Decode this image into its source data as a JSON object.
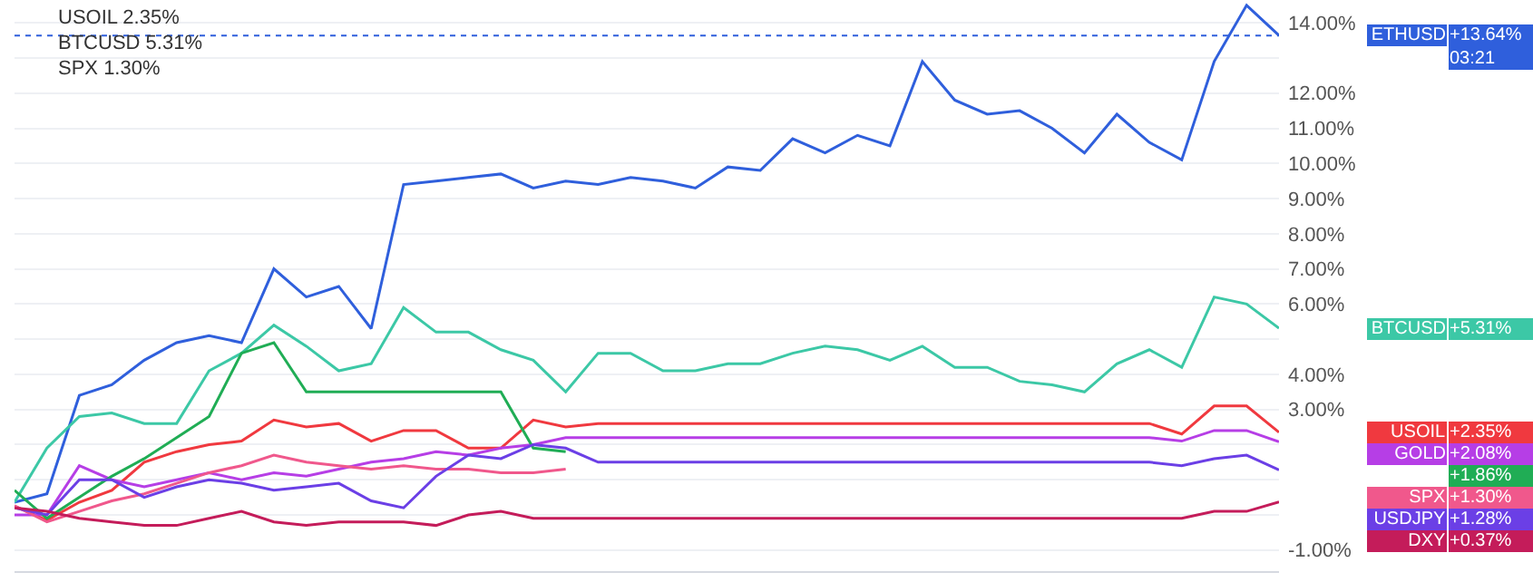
{
  "chart_data": {
    "type": "line",
    "categories": [
      null,
      null,
      null,
      null,
      null,
      null,
      null,
      null,
      null,
      null,
      null,
      null,
      null,
      null,
      null,
      null,
      null,
      null,
      null,
      null,
      null,
      null,
      null,
      null,
      null,
      null,
      null,
      null,
      null,
      null,
      null,
      null,
      null,
      null,
      null,
      null,
      null,
      null,
      null,
      null
    ],
    "series": [
      {
        "name": "ETHUSD",
        "color": "#2f5fdc",
        "values": [
          0.36,
          0.6,
          3.4,
          3.7,
          4.4,
          4.9,
          5.1,
          4.9,
          7.0,
          6.2,
          6.5,
          5.3,
          9.4,
          9.5,
          9.6,
          9.7,
          9.3,
          9.5,
          9.4,
          9.6,
          9.5,
          9.3,
          9.9,
          9.8,
          10.7,
          10.3,
          10.8,
          10.5,
          12.9,
          11.8,
          11.4,
          11.5,
          11.0,
          10.3,
          11.4,
          10.6,
          10.1,
          12.9,
          14.5,
          13.64
        ]
      },
      {
        "name": "BTCUSD",
        "color": "#3cc8a6",
        "values": [
          0.36,
          1.9,
          2.8,
          2.9,
          2.6,
          2.6,
          4.1,
          4.6,
          5.4,
          4.8,
          4.1,
          4.3,
          5.9,
          5.2,
          5.2,
          4.7,
          4.4,
          3.5,
          4.6,
          4.6,
          4.1,
          4.1,
          4.3,
          4.3,
          4.6,
          4.8,
          4.7,
          4.4,
          4.8,
          4.2,
          4.2,
          3.8,
          3.7,
          3.5,
          4.3,
          4.7,
          4.2,
          6.2,
          6.0,
          5.31
        ]
      },
      {
        "name": "USOIL",
        "color": "#f0393f",
        "values": [
          0.25,
          -0.15,
          0.36,
          0.7,
          1.5,
          1.8,
          2.0,
          2.1,
          2.7,
          2.5,
          2.6,
          2.1,
          2.4,
          2.4,
          1.9,
          1.9,
          2.7,
          2.5,
          2.6,
          2.6,
          2.6,
          2.6,
          2.6,
          2.6,
          2.6,
          2.6,
          2.6,
          2.6,
          2.6,
          2.6,
          2.6,
          2.6,
          2.6,
          2.6,
          2.6,
          2.6,
          2.3,
          3.1,
          3.1,
          2.35
        ]
      },
      {
        "name": "GOLD",
        "color": "#b63ee6",
        "values": [
          0.0,
          0.0,
          1.4,
          1.0,
          0.8,
          1.0,
          1.2,
          1.0,
          1.2,
          1.1,
          1.3,
          1.5,
          1.6,
          1.8,
          1.7,
          1.9,
          2.0,
          2.2,
          2.2,
          2.2,
          2.2,
          2.2,
          2.2,
          2.2,
          2.2,
          2.2,
          2.2,
          2.2,
          2.2,
          2.2,
          2.2,
          2.2,
          2.2,
          2.2,
          2.2,
          2.2,
          2.1,
          2.4,
          2.4,
          2.08
        ]
      },
      {
        "color": "#20ad55",
        "values": [
          0.7,
          -0.1,
          0.5,
          1.1,
          1.6,
          2.2,
          2.8,
          4.6,
          4.9,
          3.5,
          3.5,
          3.5,
          3.5,
          3.5,
          3.5,
          3.5,
          1.9,
          1.8,
          null,
          null,
          null,
          null,
          null,
          null,
          null,
          null,
          null,
          null,
          null,
          null,
          null,
          null,
          null,
          null,
          null,
          null,
          null,
          null,
          null,
          null
        ]
      },
      {
        "name": "SPX",
        "color": "#f0588c",
        "values": [
          0.26,
          -0.2,
          0.1,
          0.4,
          0.6,
          0.9,
          1.2,
          1.4,
          1.7,
          1.5,
          1.4,
          1.3,
          1.4,
          1.3,
          1.3,
          1.2,
          1.2,
          1.3,
          null,
          null,
          null,
          null,
          null,
          null,
          null,
          null,
          null,
          null,
          null,
          null,
          null,
          null,
          null,
          null,
          null,
          null,
          null,
          null,
          null,
          null
        ]
      },
      {
        "name": "USDJPY",
        "color": "#6b3fe6",
        "values": [
          0.2,
          0.0,
          1.0,
          1.0,
          0.5,
          0.8,
          1.0,
          0.9,
          0.7,
          0.8,
          0.9,
          0.4,
          0.2,
          1.1,
          1.7,
          1.6,
          2.0,
          1.9,
          1.5,
          1.5,
          1.5,
          1.5,
          1.5,
          1.5,
          1.5,
          1.5,
          1.5,
          1.5,
          1.5,
          1.5,
          1.5,
          1.5,
          1.5,
          1.5,
          1.5,
          1.5,
          1.4,
          1.6,
          1.7,
          1.28
        ]
      },
      {
        "name": "DXY",
        "color": "#c41c5a",
        "values": [
          0.2,
          0.1,
          -0.1,
          -0.2,
          -0.3,
          -0.3,
          -0.1,
          0.1,
          -0.2,
          -0.3,
          -0.2,
          -0.2,
          -0.2,
          -0.3,
          0.0,
          0.1,
          -0.1,
          -0.1,
          -0.1,
          -0.1,
          -0.1,
          -0.1,
          -0.1,
          -0.1,
          -0.1,
          -0.1,
          -0.1,
          -0.1,
          -0.1,
          -0.1,
          -0.1,
          -0.1,
          -0.1,
          -0.1,
          -0.1,
          -0.1,
          -0.1,
          0.1,
          0.1,
          0.37
        ]
      }
    ],
    "ylim": [
      -1.6,
      14.65
    ],
    "yticks": [
      {
        "value": -1,
        "label": "-1.00%"
      },
      {
        "value": 0,
        "label": null
      },
      {
        "value": 1,
        "label": null
      },
      {
        "value": 2,
        "label": null
      },
      {
        "value": 3,
        "label": "3.00%"
      },
      {
        "value": 4,
        "label": "4.00%"
      },
      {
        "value": 5,
        "label": null
      },
      {
        "value": 6,
        "label": "6.00%"
      },
      {
        "value": 7,
        "label": "7.00%"
      },
      {
        "value": 8,
        "label": "8.00%"
      },
      {
        "value": 9,
        "label": "9.00%"
      },
      {
        "value": 10,
        "label": "10.00%"
      },
      {
        "value": 11,
        "label": "11.00%"
      },
      {
        "value": 12,
        "label": "12.00%"
      },
      {
        "value": 13,
        "label": null
      },
      {
        "value": 14,
        "label": "14.00%"
      }
    ],
    "grid": "y",
    "legend": "right",
    "marker": "none",
    "line_style": "solid",
    "ref_lines": [
      {
        "axis": "y",
        "value": 13.64,
        "color": "#2f5fdc",
        "line_style": "dotted"
      }
    ],
    "annotations": [
      "USOIL 2.35%",
      "BTCUSD 5.31%",
      "SPX 1.30%",
      "+13.64%\n03:21",
      "+5.31%",
      "+2.35%",
      "+2.08%",
      "+1.86%",
      "+1.30%",
      "+1.28%",
      "+0.37%"
    ]
  }
}
